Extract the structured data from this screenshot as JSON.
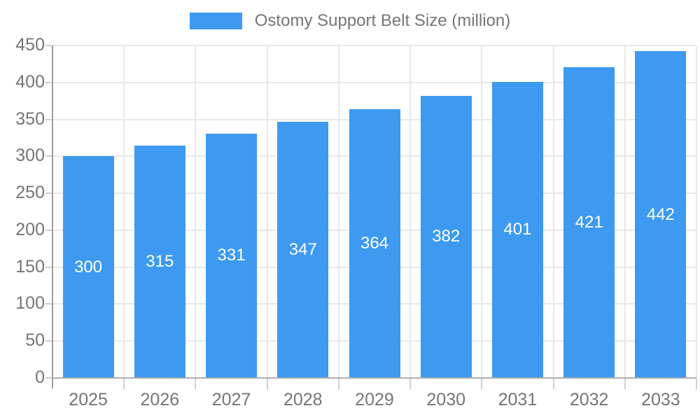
{
  "legend": {
    "label": "Ostomy Support Belt Size (million)"
  },
  "chart_data": {
    "type": "bar",
    "title": "Ostomy Support Belt Size (million)",
    "categories": [
      "2025",
      "2026",
      "2027",
      "2028",
      "2029",
      "2030",
      "2031",
      "2032",
      "2033"
    ],
    "values": [
      300,
      315,
      331,
      347,
      364,
      382,
      401,
      421,
      442
    ],
    "xlabel": "",
    "ylabel": "",
    "ylim": [
      0,
      450
    ],
    "ytick_step": 50,
    "grid": true,
    "legend_position": "top-center",
    "value_label_position": "inside-center"
  },
  "colors": {
    "bar": "#3D9AF0",
    "grid": "#E8E8E8",
    "y_axis": "#9E9E9E",
    "x_axis": "#B0B0B0",
    "tick": "#CFCFCF",
    "axis_label": "#757575",
    "value_label": "#FFFFFF",
    "background": "#FFFFFF"
  }
}
